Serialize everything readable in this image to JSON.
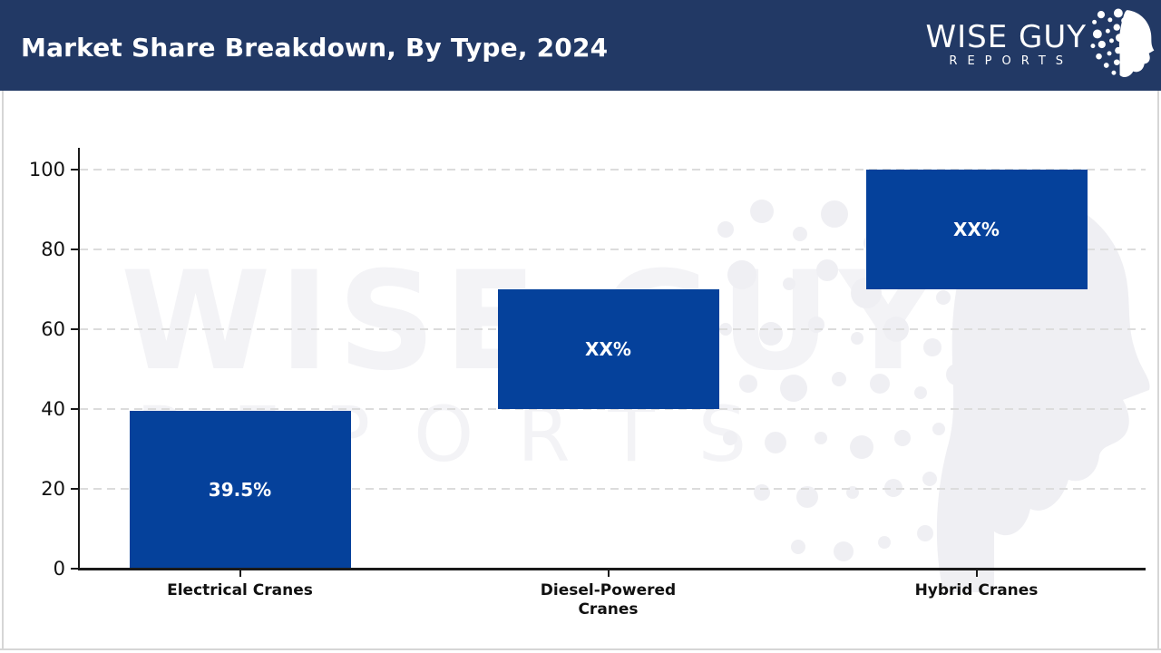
{
  "header": {
    "title": "Market Share Breakdown, By Type, 2024",
    "logo": {
      "line1": "WISE GUY",
      "line2": "REPORTS"
    }
  },
  "watermark": {
    "line1": "WISE GUY",
    "line2": "REPORTS"
  },
  "chart_data": {
    "type": "bar",
    "subtype": "floating-range-bars",
    "title": "Market Share Breakdown, By Type, 2024",
    "categories": [
      "Electrical Cranes",
      "Diesel-Powered\nCranes",
      "Hybrid Cranes"
    ],
    "series": [
      {
        "name": "Market share range (%)",
        "ranges": [
          [
            0,
            39.5
          ],
          [
            40,
            70
          ],
          [
            70,
            100
          ]
        ]
      }
    ],
    "bar_labels": [
      "39.5%",
      "XX%",
      "XX%"
    ],
    "ylim": [
      0,
      100
    ],
    "yticks": [
      0,
      20,
      40,
      60,
      80,
      100
    ],
    "xlabel": "",
    "ylabel": "",
    "grid": true,
    "grid_style": "dashed",
    "legend": "none",
    "bar_color": "#05419b",
    "label_color": "#ffffff"
  },
  "colors": {
    "header_bg": "#223965",
    "bar": "#05419b",
    "axis": "#1a1a1a",
    "grid": "#dcdcdc",
    "watermark": "#f3f3f6",
    "frame_border": "#d6d6d6"
  }
}
